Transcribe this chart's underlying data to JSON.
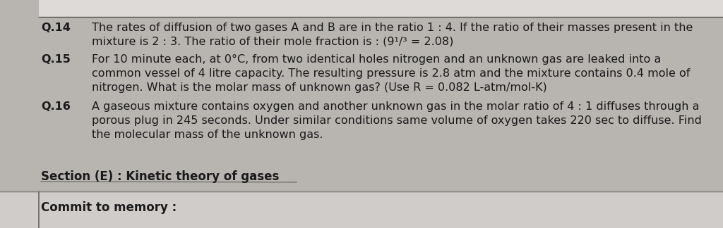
{
  "background_color": "#b8b4b0",
  "main_area_color": "#c8c4c0",
  "commit_box_color": "#d0ccca",
  "commit_box_border": "#888880",
  "top_box_color": "#d8d4d2",
  "q14_label": "Q.14",
  "q14_line1": "The rates of diffusion of two gases A and B are in the ratio 1 : 4. If the ratio of their masses present in the",
  "q14_line2": "mixture is 2 : 3. The ratio of their mole fraction is : (9¹/³ = 2.08)",
  "q15_label": "Q.15",
  "q15_line1": "For 10 minute each, at 0°C, from two identical holes nitrogen and an unknown gas are leaked into a",
  "q15_line2": "common vessel of 4 litre capacity. The resulting pressure is 2.8 atm and the mixture contains 0.4 mole of",
  "q15_line3": "nitrogen. What is the molar mass of unknown gas? (Use R = 0.082 L-atm/mol-K)",
  "q16_label": "Q.16",
  "q16_line1": "A gaseous mixture contains oxygen and another unknown gas in the molar ratio of 4 : 1 diffuses through a",
  "q16_line2": "porous plug in 245 seconds. Under similar conditions same volume of oxygen takes 220 sec to diffuse. Find",
  "q16_line3": "the molecular mass of the unknown gas.",
  "section_text": "Section (E) : Kinetic theory of gases",
  "commit_text": "Commit to memory :",
  "text_color": "#1a1a1a",
  "font_size": 11.5,
  "font_size_section": 12.0
}
